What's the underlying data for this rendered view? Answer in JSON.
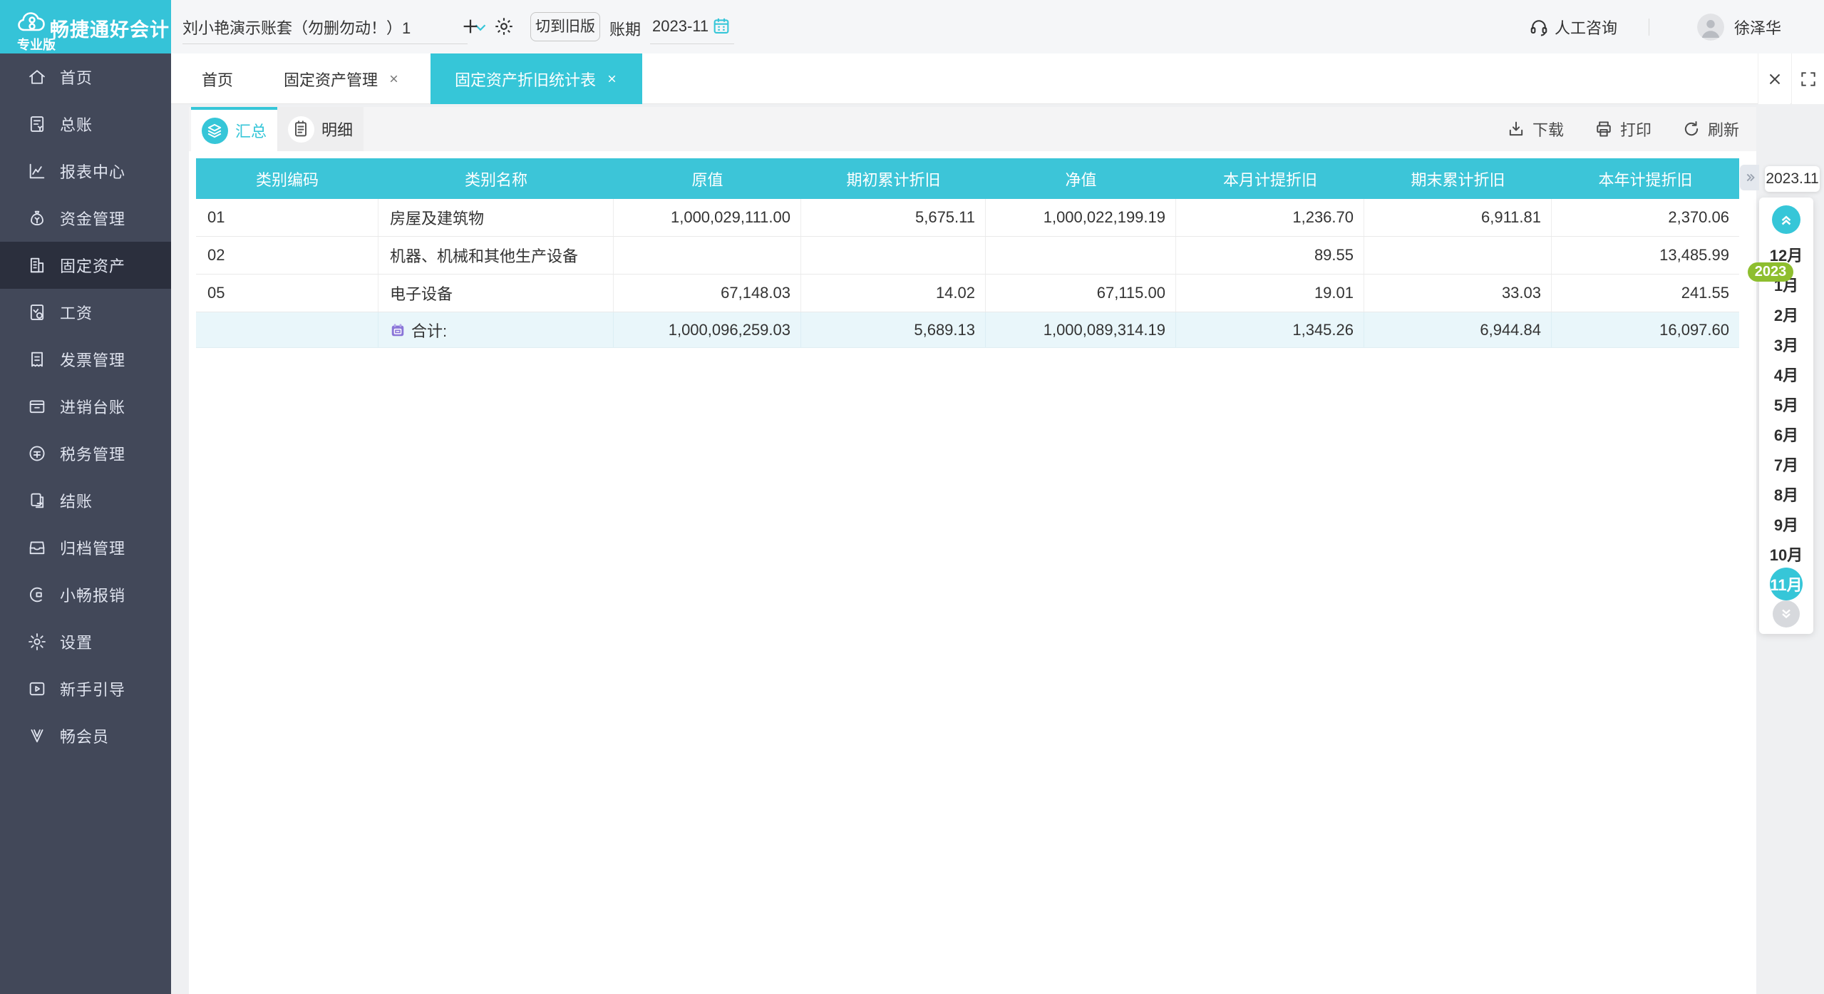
{
  "brand": {
    "title": "畅捷通好会计",
    "edition": "专业版"
  },
  "topbar": {
    "account_set": "刘小艳演示账套（勿删勿动！）1",
    "switch_old_version": "切到旧版",
    "period_label": "账期",
    "period_value": "2023-11",
    "support": "人工咨询",
    "username": "徐泽华"
  },
  "sidebar": {
    "items": [
      {
        "key": "home",
        "icon": "home",
        "label": "首页",
        "active": false
      },
      {
        "key": "general-ledger",
        "icon": "ledger",
        "label": "总账",
        "active": false
      },
      {
        "key": "report-center",
        "icon": "report",
        "label": "报表中心",
        "active": false
      },
      {
        "key": "funds-management",
        "icon": "funds",
        "label": "资金管理",
        "active": false
      },
      {
        "key": "fixed-assets",
        "icon": "asset",
        "label": "固定资产",
        "active": true
      },
      {
        "key": "payroll",
        "icon": "payroll",
        "label": "工资",
        "active": false
      },
      {
        "key": "invoice-management",
        "icon": "invoice",
        "label": "发票管理",
        "active": false
      },
      {
        "key": "purchase-sales-ledger",
        "icon": "inventory",
        "label": "进销台账",
        "active": false
      },
      {
        "key": "tax-management",
        "icon": "tax",
        "label": "税务管理",
        "active": false
      },
      {
        "key": "closing",
        "icon": "closing",
        "label": "结账",
        "active": false
      },
      {
        "key": "archive-management",
        "icon": "archive",
        "label": "归档管理",
        "active": false
      },
      {
        "key": "xiaochang-reimburse",
        "icon": "reimburse",
        "label": "小畅报销",
        "active": false
      },
      {
        "key": "settings",
        "icon": "gear",
        "label": "设置",
        "active": false
      },
      {
        "key": "beginner-guide",
        "icon": "guide",
        "label": "新手引导",
        "active": false
      },
      {
        "key": "chang-member",
        "icon": "member",
        "label": "畅会员",
        "active": false
      }
    ]
  },
  "tabs": [
    {
      "key": "home",
      "label": "首页",
      "closable": false,
      "active": false
    },
    {
      "key": "fixed-asset-management",
      "label": "固定资产管理",
      "closable": true,
      "active": false
    },
    {
      "key": "depreciation-statistics",
      "label": "固定资产折旧统计表",
      "closable": true,
      "active": true
    }
  ],
  "view_tabs": [
    {
      "key": "summary",
      "icon": "layers",
      "label": "汇总",
      "active": true
    },
    {
      "key": "detail",
      "icon": "detail",
      "label": "明细",
      "active": false
    }
  ],
  "toolbar": {
    "buttons": [
      {
        "key": "download",
        "icon": "download",
        "label": "下载"
      },
      {
        "key": "print",
        "icon": "print",
        "label": "打印"
      },
      {
        "key": "refresh",
        "icon": "refresh",
        "label": "刷新"
      }
    ]
  },
  "table": {
    "columns": [
      "类别编码",
      "类别名称",
      "原值",
      "期初累计折旧",
      "净值",
      "本月计提折旧",
      "期末累计折旧",
      "本年计提折旧"
    ],
    "rows": [
      [
        "01",
        "房屋及建筑物",
        "1,000,029,111.00",
        "5,675.11",
        "1,000,022,199.19",
        "1,236.70",
        "6,911.81",
        "2,370.06"
      ],
      [
        "02",
        "机器、机械和其他生产设备",
        "",
        "",
        "",
        "89.55",
        "",
        "13,485.99"
      ],
      [
        "05",
        "电子设备",
        "67,148.03",
        "14.02",
        "67,115.00",
        "19.01",
        "33.03",
        "241.55"
      ]
    ],
    "total": {
      "label": "合计:",
      "values": [
        "1,000,096,259.03",
        "5,689.13",
        "1,000,089,314.19",
        "1,345.26",
        "6,944.84",
        "16,097.60"
      ]
    }
  },
  "period_panel": {
    "current": "2023.11",
    "year_badge": "2023",
    "months": [
      "12月",
      "1月",
      "2月",
      "3月",
      "4月",
      "5月",
      "6月",
      "7月",
      "8月",
      "9月",
      "10月",
      "11月"
    ],
    "selected_month": "11月"
  },
  "colors": {
    "accent": "#36c6d8",
    "table_header": "#3cc5d8",
    "sidebar_bg": "#424859",
    "sidebar_active_bg": "#2b2f3d",
    "total_row_bg": "#e9f6fa",
    "year_badge_green": "#8ebe2f",
    "total_icon_purple": "#8a76d8"
  }
}
